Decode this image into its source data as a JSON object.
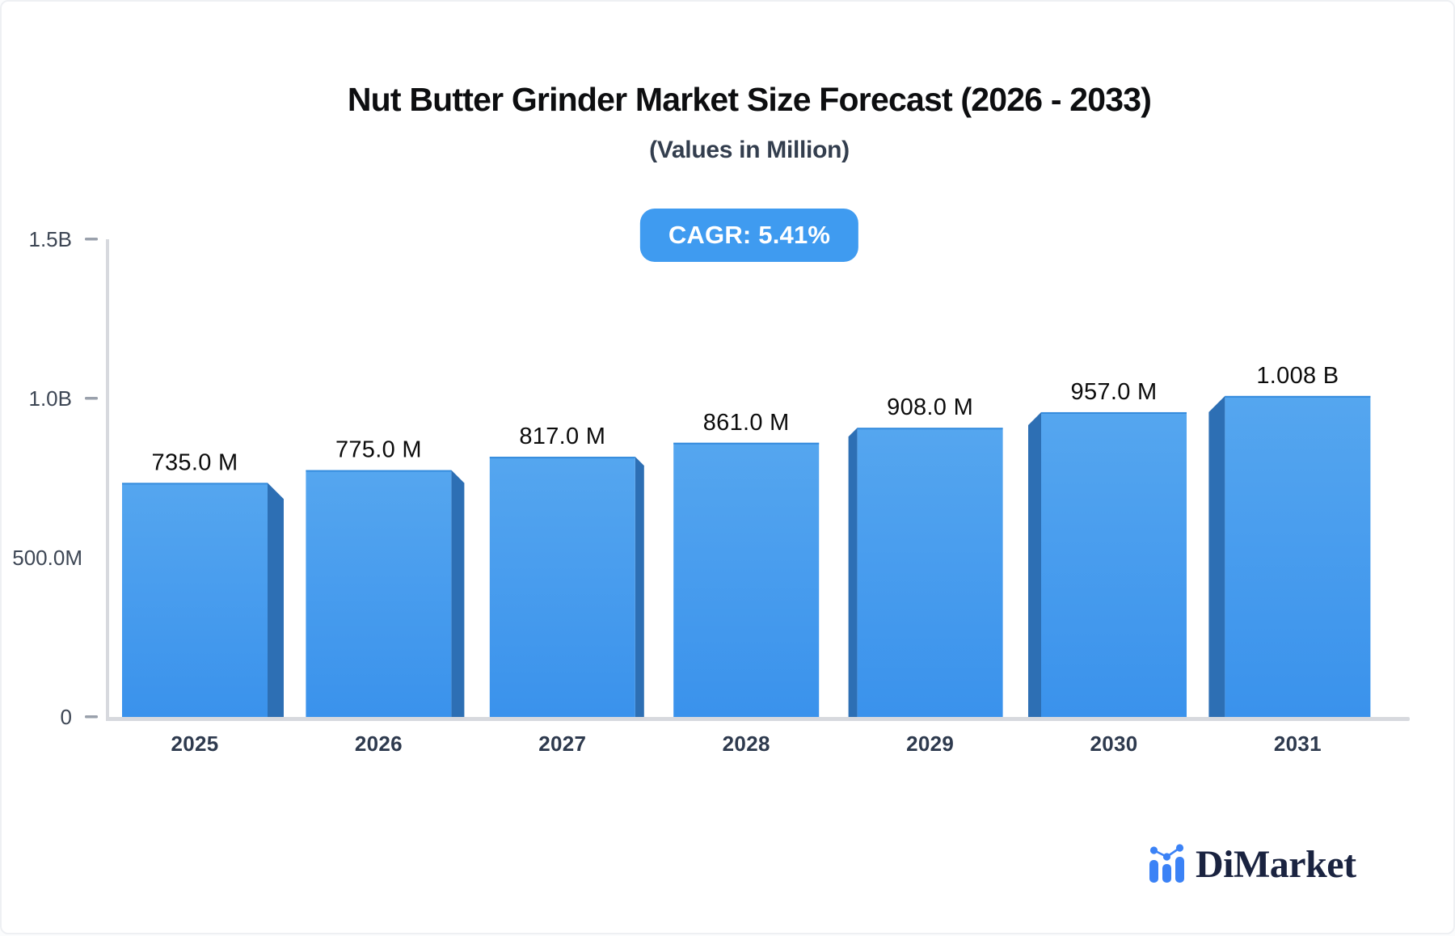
{
  "header": {
    "title": "Nut Butter Grinder Market Size Forecast (2026 - 2033)",
    "subtitle": "(Values in Million)",
    "cagr_badge": "CAGR: 5.41%"
  },
  "chart_data": {
    "type": "bar",
    "style": "3d-column",
    "title": "Nut Butter Grinder Market Size Forecast (2026 - 2033)",
    "subtitle": "(Values in Million)",
    "unit": "Million USD",
    "cagr": "5.41%",
    "categories": [
      "2025",
      "2026",
      "2027",
      "2028",
      "2029",
      "2030",
      "2031"
    ],
    "values": [
      735,
      775,
      817,
      861,
      908,
      957,
      1008
    ],
    "value_labels": [
      "735.0 M",
      "775.0 M",
      "817.0 M",
      "861.0 M",
      "908.0 M",
      "957.0 M",
      "1.008 B"
    ],
    "ylim": [
      0,
      1500
    ],
    "yticks": [
      {
        "label": "1.5B",
        "value": 1500,
        "dash": true
      },
      {
        "label": "1.0B",
        "value": 1000,
        "dash": true
      },
      {
        "label": "500.0M",
        "value": 500,
        "dash": false
      },
      {
        "label": "0",
        "value": 0,
        "dash": true
      }
    ],
    "grid": false,
    "legend": false,
    "colors": {
      "bar_face_top": "#55a6ef",
      "bar_face_bottom": "#3a92ec",
      "bar_side": "#2d6fb4",
      "bar_top_edge": "#2e86d9",
      "axis": "#d7d9de",
      "tick": "#9aa1ac",
      "ytick_text": "#3d4654",
      "xtick_text": "#2e3a4e",
      "value_text": "#0c0c0c",
      "badge_bg": "#3f9bf0",
      "badge_text": "#ffffff"
    }
  },
  "logo": {
    "text": "DiMarket",
    "icon": "bar-chart-trend-icon",
    "text_color": "#1a2340",
    "accent": "#3b82f6"
  }
}
